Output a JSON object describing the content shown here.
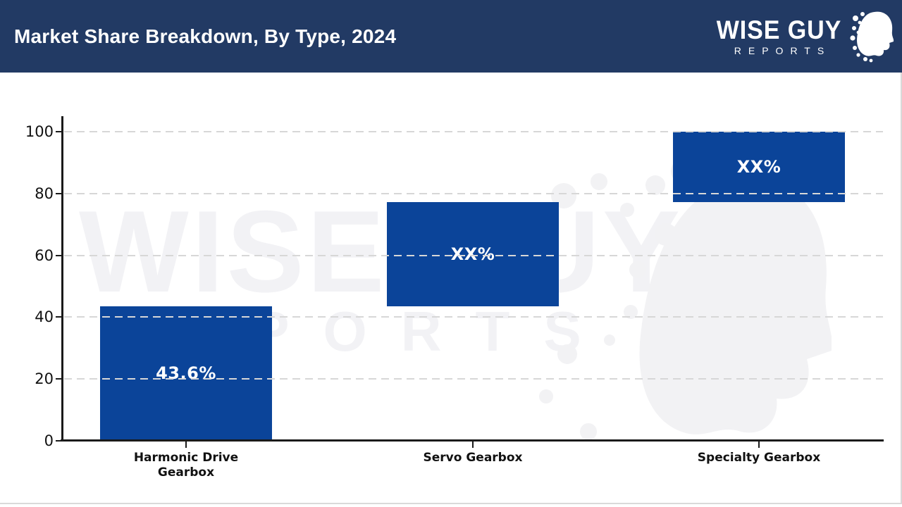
{
  "header": {
    "title": "Market Share Breakdown, By Type, 2024",
    "logo": {
      "wordmark": "WISE GUY",
      "subtext": "REPORTS",
      "icon": "face-profile-dots-icon"
    }
  },
  "watermark": {
    "line1": "WISE GUY",
    "line2": "REPORTS"
  },
  "chart_data": {
    "type": "bar",
    "subtype": "floating-stepped-segments",
    "title": "Market Share Breakdown, By Type, 2024",
    "categories": [
      "Harmonic Drive Gearbox",
      "Servo Gearbox",
      "Specialty Gearbox"
    ],
    "bars": [
      {
        "category": "Harmonic Drive Gearbox",
        "from": 0,
        "to": 43.6,
        "label": "43.6%"
      },
      {
        "category": "Servo Gearbox",
        "from": 43.6,
        "to": 77.2,
        "label": "XX%"
      },
      {
        "category": "Specialty Gearbox",
        "from": 77.2,
        "to": 100,
        "label": "XX%"
      }
    ],
    "values": [
      43.6,
      33.6,
      22.8
    ],
    "xlabel": "",
    "ylabel": "",
    "ylim": [
      0,
      100
    ],
    "yticks": [
      0,
      20,
      40,
      60,
      80,
      100
    ],
    "grid": "horizontal-dashed",
    "legend": "none",
    "colors": {
      "bar": "#0b4499",
      "bar_label": "#ffffff",
      "grid": "#d7d7d7",
      "axis": "#1a1a1a",
      "header_bg": "#223a64",
      "watermark": "#f2f2f5"
    }
  }
}
